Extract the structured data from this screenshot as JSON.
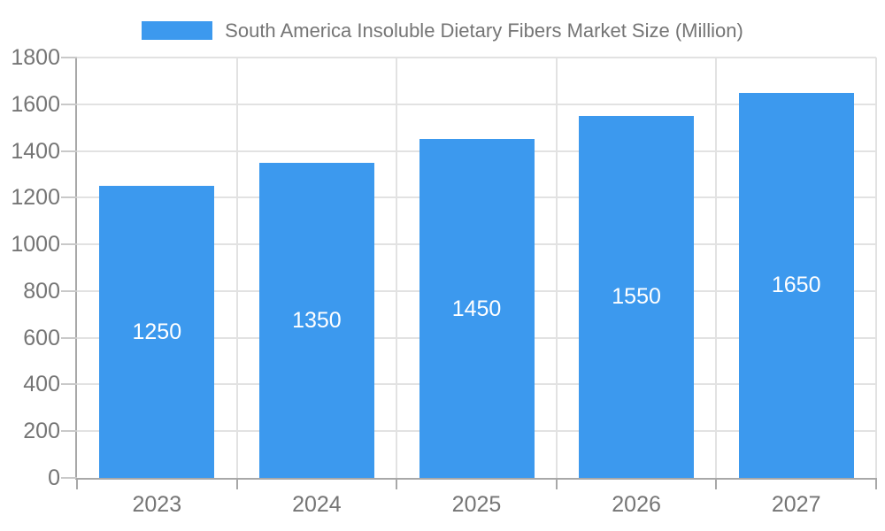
{
  "chart_data": {
    "type": "bar",
    "title": "South America Insoluble Dietary Fibers Market Size (Million)",
    "categories": [
      "2023",
      "2024",
      "2025",
      "2026",
      "2027"
    ],
    "values": [
      1250,
      1350,
      1450,
      1550,
      1650
    ],
    "y_ticks": [
      0,
      200,
      400,
      600,
      800,
      1000,
      1200,
      1400,
      1600,
      1800
    ],
    "ylim": [
      0,
      1800
    ],
    "xlabel": "",
    "ylabel": "",
    "grid": true,
    "legend_position": "top",
    "colors": {
      "bar": "#3c99ee",
      "bar_label": "#ffffff",
      "axis_text": "#757575",
      "title_text": "#757575",
      "gridline": "#e2e2e2",
      "axis_line": "#a8a8a8",
      "y_tick": "#c9c9c9",
      "x_tick": "#a8a8a8"
    }
  }
}
